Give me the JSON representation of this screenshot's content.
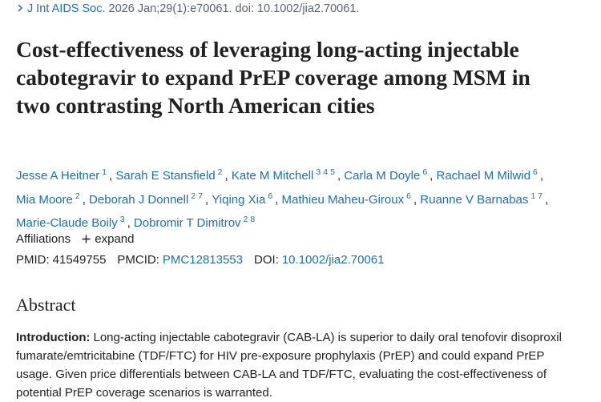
{
  "citation": {
    "journal": "J Int AIDS Soc.",
    "details": "2026 Jan;29(1):e70061. doi: 10.1002/jia2.70061."
  },
  "title": "Cost-effectiveness of leveraging long-acting injectable cabotegravir to expand PrEP coverage among MSM in two contrasting North American cities",
  "authors": [
    {
      "name": "Jesse A Heitner",
      "affiliations": [
        "1"
      ]
    },
    {
      "name": "Sarah E Stansfield",
      "affiliations": [
        "2"
      ]
    },
    {
      "name": "Kate M Mitchell",
      "affiliations": [
        "3",
        "4",
        "5"
      ]
    },
    {
      "name": "Carla M Doyle",
      "affiliations": [
        "6"
      ]
    },
    {
      "name": "Rachael M Milwid",
      "affiliations": [
        "6"
      ]
    },
    {
      "name": "Mia Moore",
      "affiliations": [
        "2"
      ]
    },
    {
      "name": "Deborah J Donnell",
      "affiliations": [
        "2",
        "7"
      ]
    },
    {
      "name": "Yiqing Xia",
      "affiliations": [
        "6"
      ]
    },
    {
      "name": "Mathieu Maheu-Giroux",
      "affiliations": [
        "6"
      ]
    },
    {
      "name": "Ruanne V Barnabas",
      "affiliations": [
        "1",
        "7"
      ]
    },
    {
      "name": "Marie-Claude Boily",
      "affiliations": [
        "3"
      ]
    },
    {
      "name": "Dobromir T Dimitrov",
      "affiliations": [
        "2",
        "8"
      ]
    }
  ],
  "affiliations": {
    "label": "Affiliations",
    "toggle": "expand"
  },
  "ids": [
    {
      "label": "PMID:",
      "value": "41549755"
    },
    {
      "label": "PMCID:",
      "value": "PMC12813553"
    },
    {
      "label": "DOI:",
      "value": "10.1002/jia2.70061"
    }
  ],
  "abstract": {
    "heading": "Abstract",
    "sections": [
      {
        "label": "Introduction:",
        "text": "Long-acting injectable cabotegravir (CAB-LA) is superior to daily oral tenofovir disoproxil fumarate/emtricitabine (TDF/FTC) for HIV pre-exposure prophylaxis (PrEP) and could expand PrEP usage. Given price differentials between CAB-LA and TDF/FTC, evaluating the cost-effectiveness of potential PrEP coverage scenarios is warranted."
      }
    ]
  }
}
